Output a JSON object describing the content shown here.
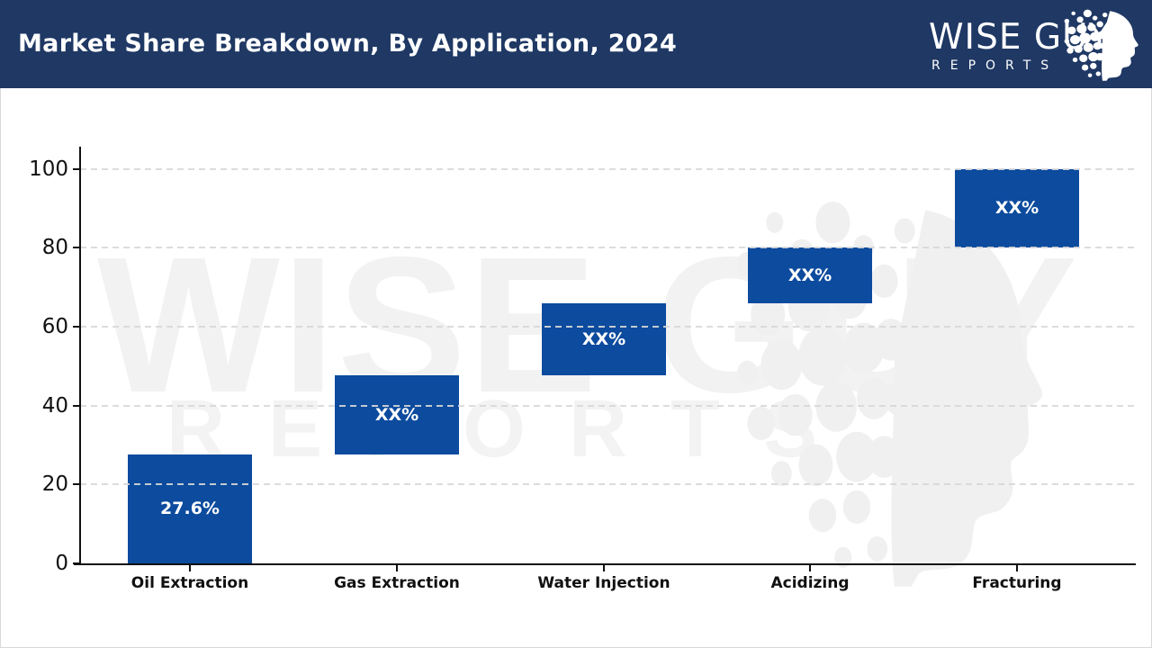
{
  "header": {
    "title": "Market Share Breakdown, By Application, 2024",
    "logo": {
      "wordmark": "WISE GUY",
      "sub": "REPORTS"
    }
  },
  "watermark": {
    "wordmark": "WISE GUY",
    "sub": "REPORTS"
  },
  "colors": {
    "header_bg": "#1f3864",
    "bar": "#0c4b9e",
    "bar_label": "#ffffff",
    "axis": "#111111",
    "gridline": "#d8d8d8",
    "watermark": "#f2f2f2"
  },
  "chart_data": {
    "type": "bar",
    "subtype": "waterfall",
    "title": "Market Share Breakdown, By Application, 2024",
    "categories": [
      "Oil Extraction",
      "Gas Extraction",
      "Water Injection",
      "Acidizing",
      "Fracturing"
    ],
    "segments": [
      {
        "category": "Oil Extraction",
        "start": 0,
        "end": 27.6,
        "label": "27.6%"
      },
      {
        "category": "Gas Extraction",
        "start": 27.6,
        "end": 47.6,
        "label": "XX%"
      },
      {
        "category": "Water Injection",
        "start": 47.6,
        "end": 66.0,
        "label": "XX%"
      },
      {
        "category": "Acidizing",
        "start": 66.0,
        "end": 80.0,
        "label": "XX%"
      },
      {
        "category": "Fracturing",
        "start": 80.0,
        "end": 100.0,
        "label": "XX%"
      }
    ],
    "yticks": [
      0,
      20,
      40,
      60,
      80,
      100
    ],
    "ylim": [
      0,
      107
    ],
    "xlabel": "",
    "ylabel": "",
    "grid": "horizontal-dashed",
    "legend": "none"
  }
}
